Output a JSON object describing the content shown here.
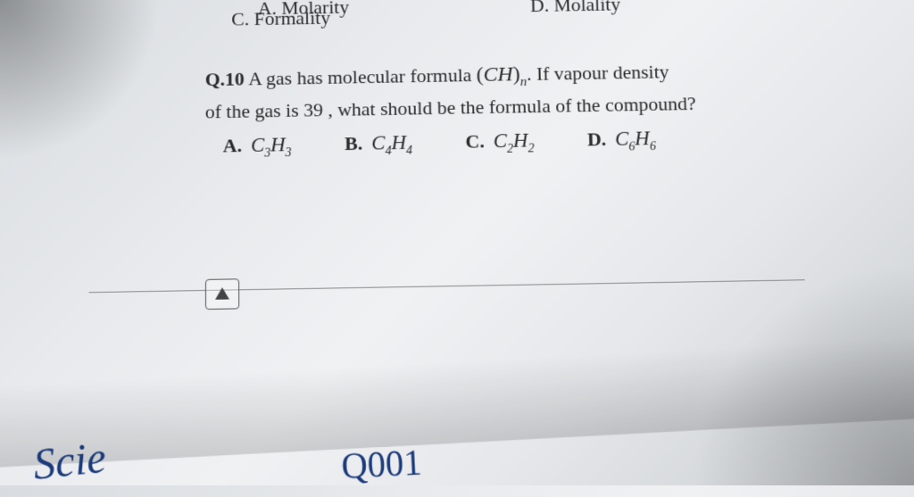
{
  "top_options": {
    "a": "A. Molarity",
    "c": "C. Formality",
    "d": "D. Molality"
  },
  "question": {
    "label": "Q.10",
    "line1_pre": " A gas has molecular formula ",
    "formula_open": "(",
    "formula_c": "C",
    "formula_h": "H",
    "formula_close": ")",
    "formula_sub": "n",
    "line1_post": ". If vapour density",
    "line2": "of the gas is 39 , what should be the formula of the compound?"
  },
  "options": {
    "a": {
      "label": "A.",
      "c": "C",
      "c_sub": "3",
      "h": "H",
      "h_sub": "3"
    },
    "b": {
      "label": "B.",
      "c": "C",
      "c_sub": "4",
      "h": "H",
      "h_sub": "4"
    },
    "c": {
      "label": "C.",
      "c": "C",
      "c_sub": "2",
      "h": "H",
      "h_sub": "2"
    },
    "d": {
      "label": "D.",
      "c": "C",
      "c_sub": "6",
      "h": "H",
      "h_sub": "6"
    }
  },
  "handwriting": {
    "left": "Scie",
    "center": "Q001"
  },
  "icon_glyph": "⛰",
  "colors": {
    "text": "#2a2a2a",
    "ink": "#1a3a7a",
    "separator": "#888888"
  }
}
